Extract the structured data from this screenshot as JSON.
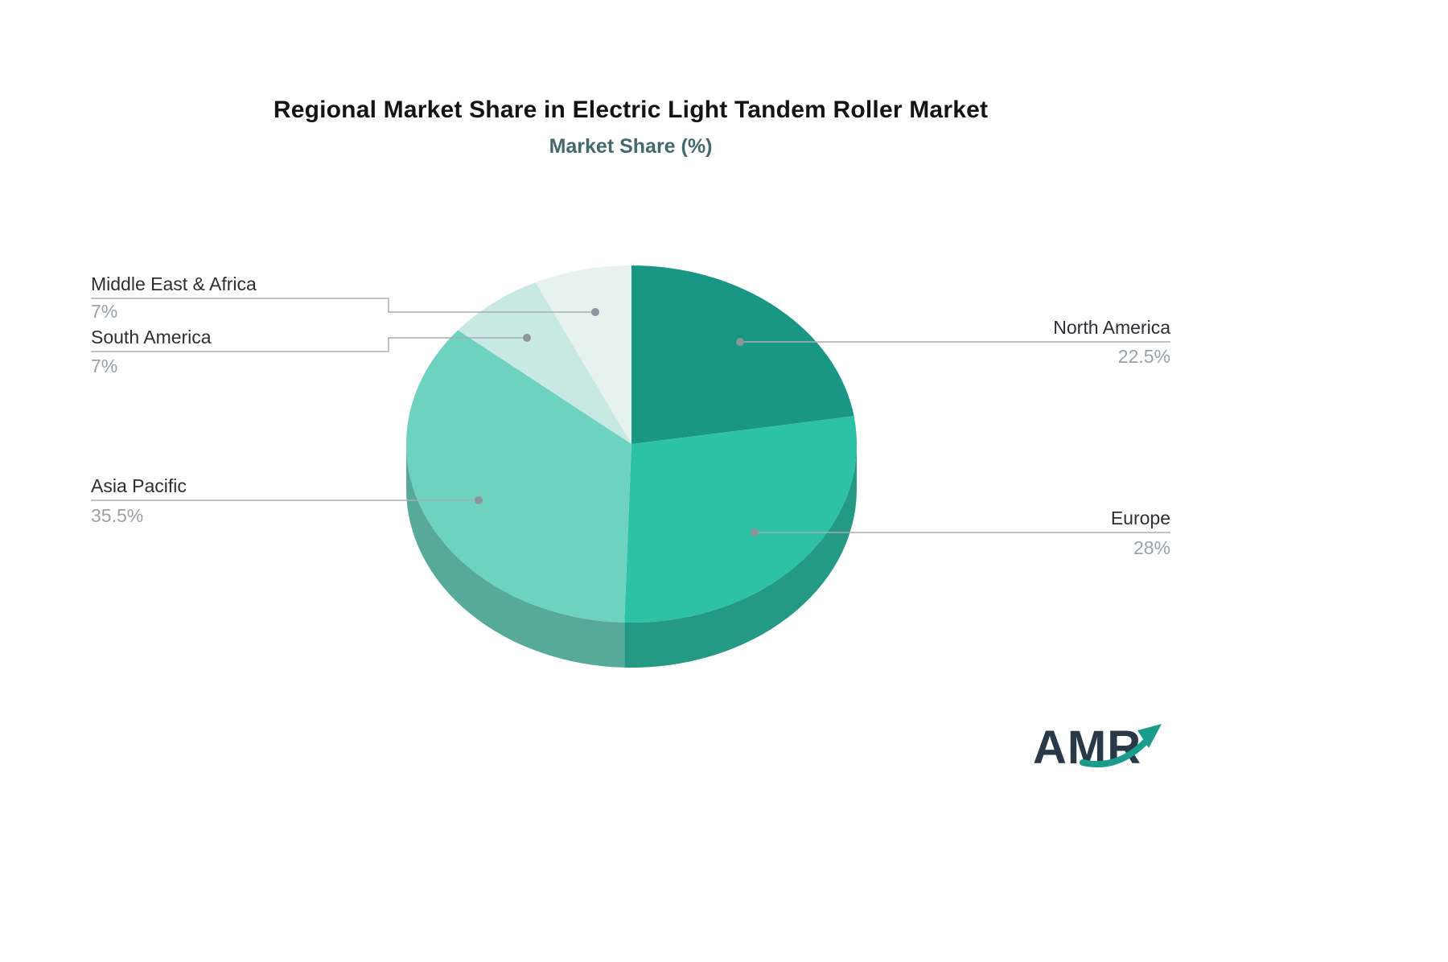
{
  "title": "Regional Market Share in Electric Light Tandem Roller Market",
  "subtitle": "Market Share (%)",
  "logo": {
    "text": "AMR"
  },
  "chart_data": {
    "type": "pie",
    "title": "Regional Market Share in Electric Light Tandem Roller Market",
    "subtitle": "Market Share (%)",
    "unit": "%",
    "effect": "3d",
    "start_angle_deg": 0,
    "direction": "clockwise",
    "legend_position": "none",
    "slices": [
      {
        "label": "North America",
        "value": 22.5,
        "display": "22.5%",
        "color": "#1a9685"
      },
      {
        "label": "Europe",
        "value": 28,
        "display": "28%",
        "color": "#2dc1a6"
      },
      {
        "label": "Asia Pacific",
        "value": 35.5,
        "display": "35.5%",
        "color": "#6dd3c0"
      },
      {
        "label": "South America",
        "value": 7,
        "display": "7%",
        "color": "#c8e9e2"
      },
      {
        "label": "Middle East & Africa",
        "value": 7,
        "display": "7%",
        "color": "#e5f2ee"
      }
    ]
  }
}
